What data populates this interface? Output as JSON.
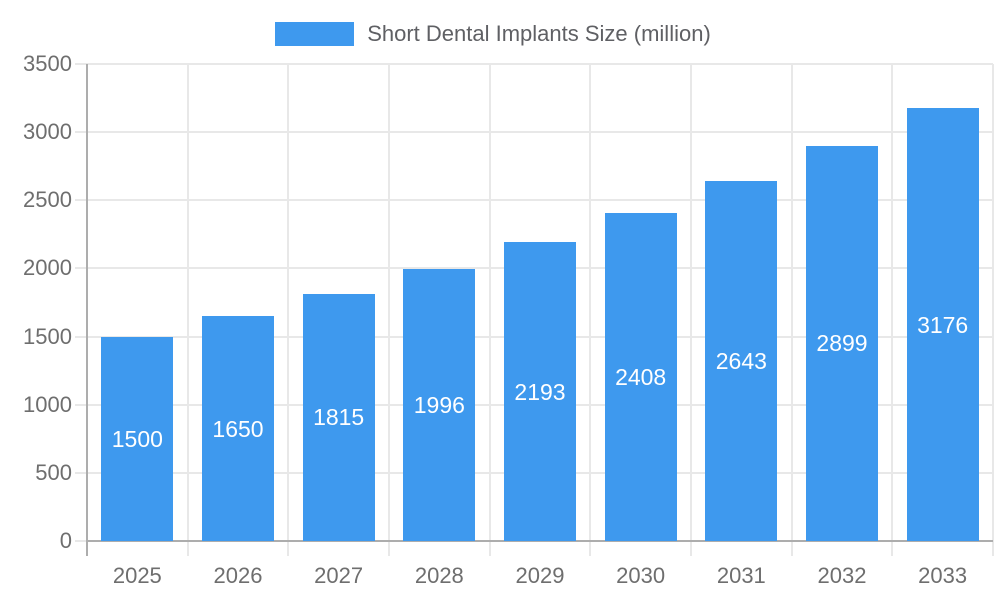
{
  "chart_data": {
    "type": "bar",
    "title": "Short Dental Implants Size (million)",
    "legend_position": "top-center",
    "legend_entries": [
      "Short Dental Implants Size (million)"
    ],
    "categories": [
      "2025",
      "2026",
      "2027",
      "2028",
      "2029",
      "2030",
      "2031",
      "2032",
      "2033"
    ],
    "values": [
      1500,
      1650,
      1815,
      1996,
      2193,
      2408,
      2643,
      2899,
      3176
    ],
    "value_labels_shown": true,
    "xlabel": "",
    "ylabel": "",
    "ylim": [
      0,
      3500
    ],
    "y_ticks": [
      0,
      500,
      1000,
      1500,
      2000,
      2500,
      3000,
      3500
    ],
    "grid": "horizontal and vertical light-gray gridlines",
    "bar_color": "#3e99ee",
    "value_label_color": "#ffffff",
    "axis_label_color": "#6e6e6e",
    "legend_text_color": "#5f6064",
    "grid_color": "#e8e8e8",
    "axis_line_color": "#adadad",
    "background_color": "#ffffff"
  }
}
